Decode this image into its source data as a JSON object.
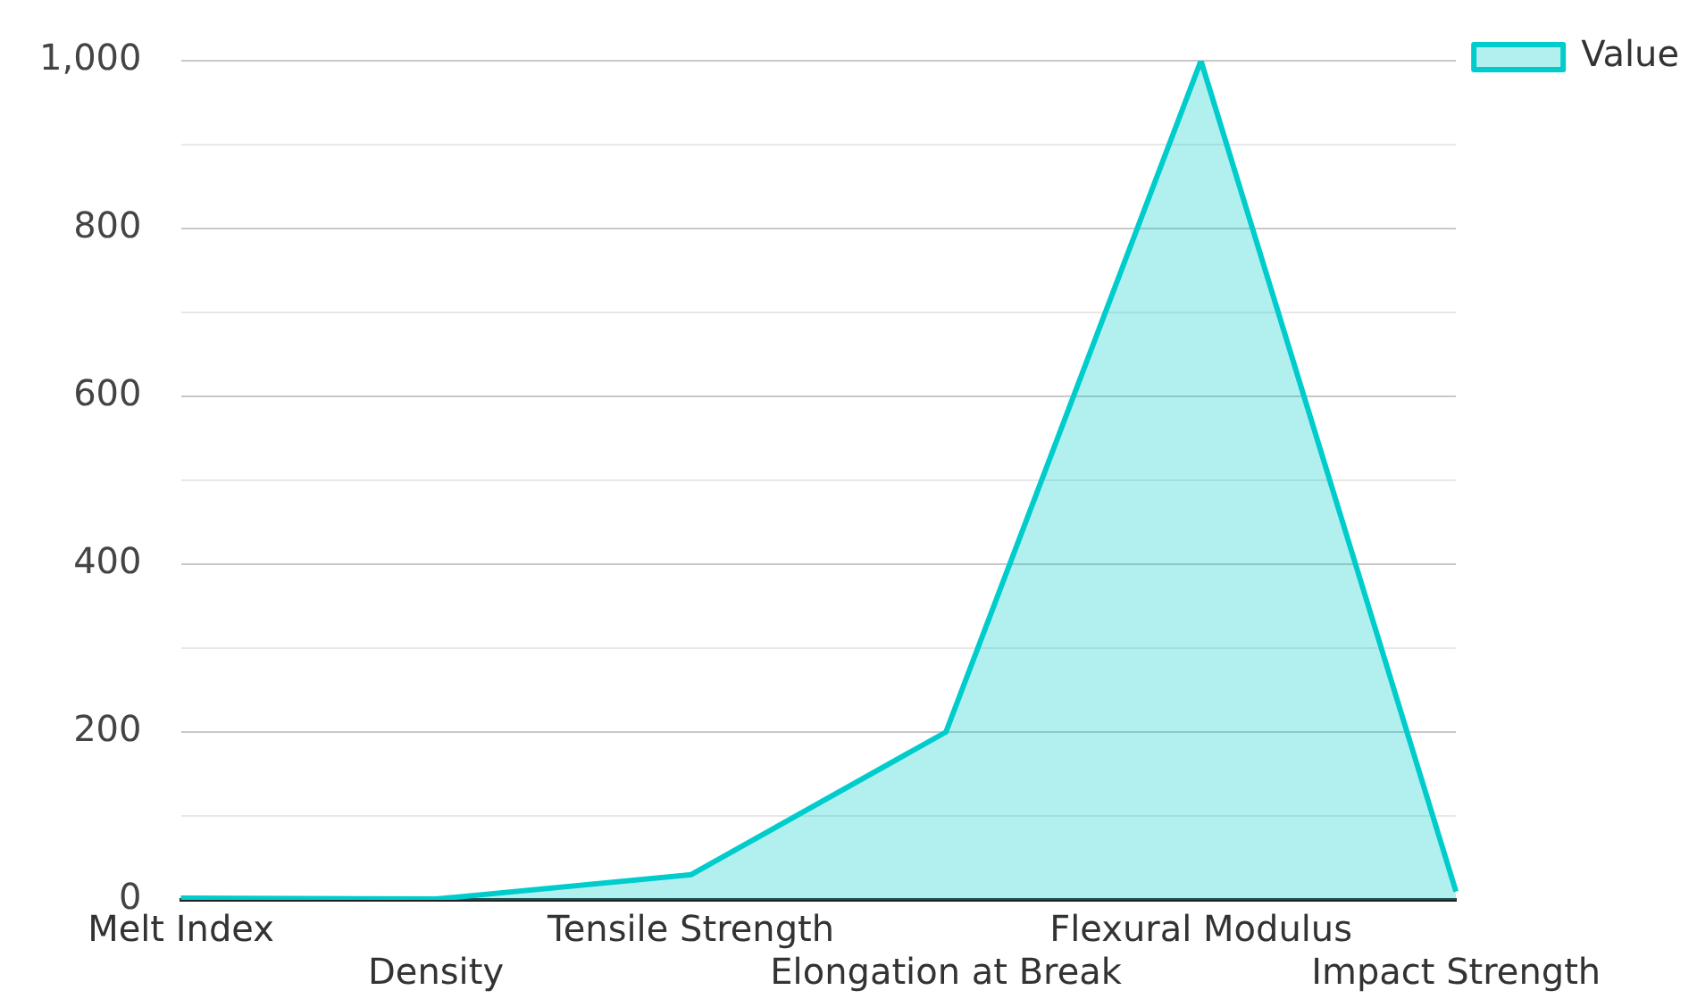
{
  "chart_data": {
    "type": "area",
    "categories": [
      "Melt Index",
      "Density",
      "Tensile Strength",
      "Elongation at Break",
      "Flexural Modulus",
      "Impact Strength"
    ],
    "series": [
      {
        "name": "Value",
        "color": "#00cccc",
        "values": [
          2,
          1,
          30,
          200,
          1000,
          10
        ]
      }
    ],
    "ylim": [
      0,
      1000
    ],
    "yticks": [
      0,
      {
        "value": 100,
        "label": null
      },
      200,
      {
        "value": 300,
        "label": null
      },
      400,
      {
        "value": 500,
        "label": null
      },
      600,
      {
        "value": 700,
        "label": null
      },
      800,
      {
        "value": 900,
        "label": null
      },
      {
        "value": 1000,
        "label": "1,000"
      }
    ],
    "grid": "y",
    "legend": "top right"
  }
}
